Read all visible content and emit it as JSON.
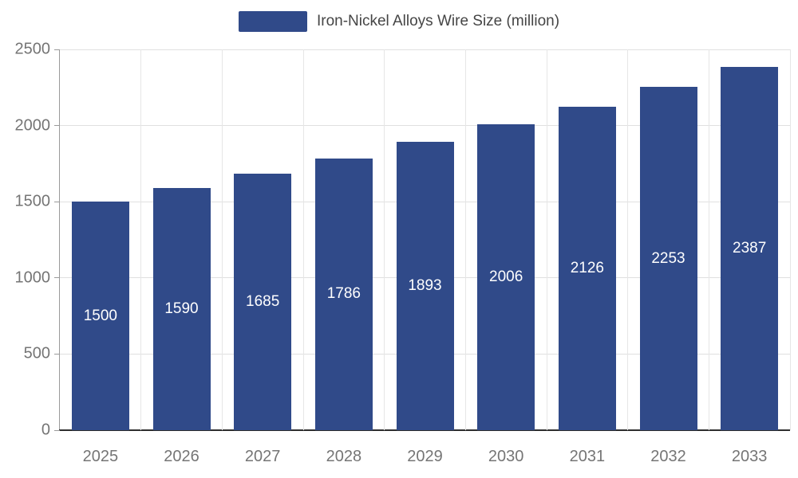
{
  "chart_data": {
    "type": "bar",
    "title": "Iron-Nickel Alloys Wire Size (million)",
    "categories": [
      "2025",
      "2026",
      "2027",
      "2028",
      "2029",
      "2030",
      "2031",
      "2032",
      "2033"
    ],
    "values": [
      1500,
      1590,
      1685,
      1786,
      1893,
      2006,
      2126,
      2253,
      2387
    ],
    "xlabel": "",
    "ylabel": "",
    "ylim": [
      0,
      2500
    ],
    "yticks": [
      0,
      500,
      1000,
      1500,
      2000,
      2500
    ],
    "grid": true,
    "legend_position": "top",
    "bar_color": "#304A89",
    "value_label_color": "#ffffff",
    "axis_label_color": "#757575",
    "grid_color": "#e0e0e0"
  }
}
